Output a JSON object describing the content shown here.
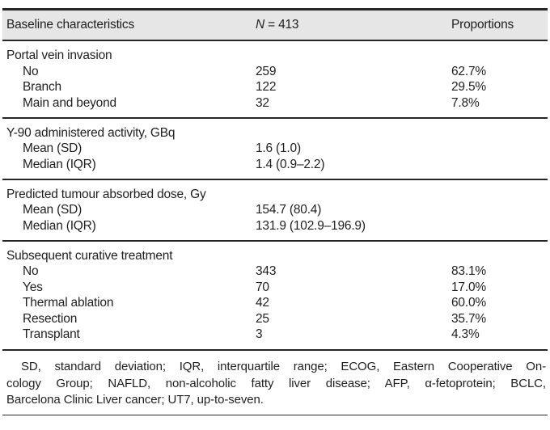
{
  "table": {
    "header": {
      "col1": "Baseline characteristics",
      "col2_italic": "N",
      "col2_rest": " = 413",
      "col3": "Proportions"
    },
    "sections": [
      {
        "title": "Portal vein invasion",
        "rows": [
          {
            "label": "No",
            "n": "259",
            "proportion": "62.7%"
          },
          {
            "label": "Branch",
            "n": "122",
            "proportion": "29.5%"
          },
          {
            "label": "Main and beyond",
            "n": "32",
            "proportion": "7.8%"
          }
        ]
      },
      {
        "title": "Y-90 administered activity, GBq",
        "rows": [
          {
            "label": "Mean (SD)",
            "n": "1.6 (1.0)",
            "proportion": ""
          },
          {
            "label": "Median (IQR)",
            "n": "1.4 (0.9–2.2)",
            "proportion": ""
          }
        ]
      },
      {
        "title": "Predicted tumour absorbed dose, Gy",
        "rows": [
          {
            "label": "Mean (SD)",
            "n": "154.7 (80.4)",
            "proportion": ""
          },
          {
            "label": "Median (IQR)",
            "n": "131.9 (102.9–196.9)",
            "proportion": ""
          }
        ]
      },
      {
        "title": "Subsequent curative treatment",
        "rows": [
          {
            "label": "No",
            "n": "343",
            "proportion": "83.1%"
          },
          {
            "label": "Yes",
            "n": "70",
            "proportion": "17.0%"
          },
          {
            "label": "Thermal ablation",
            "n": "42",
            "proportion": "60.0%"
          },
          {
            "label": "Resection",
            "n": "25",
            "proportion": "35.7%"
          },
          {
            "label": "Transplant",
            "n": "3",
            "proportion": "4.3%"
          }
        ]
      }
    ],
    "footnote": {
      "lines": [
        "SD, standard deviation; IQR, interquartile range; ECOG, Eastern Cooperative On-",
        "cology Group; NAFLD, non-alcoholic fatty liver disease; AFP, α-fetoprotein; BCLC,",
        "Barcelona Clinic Liver cancer; UT7, up-to-seven."
      ]
    },
    "colors": {
      "header_bg": "#e6e6e6",
      "rule": "#262626",
      "text": "#1f1f1f"
    }
  }
}
